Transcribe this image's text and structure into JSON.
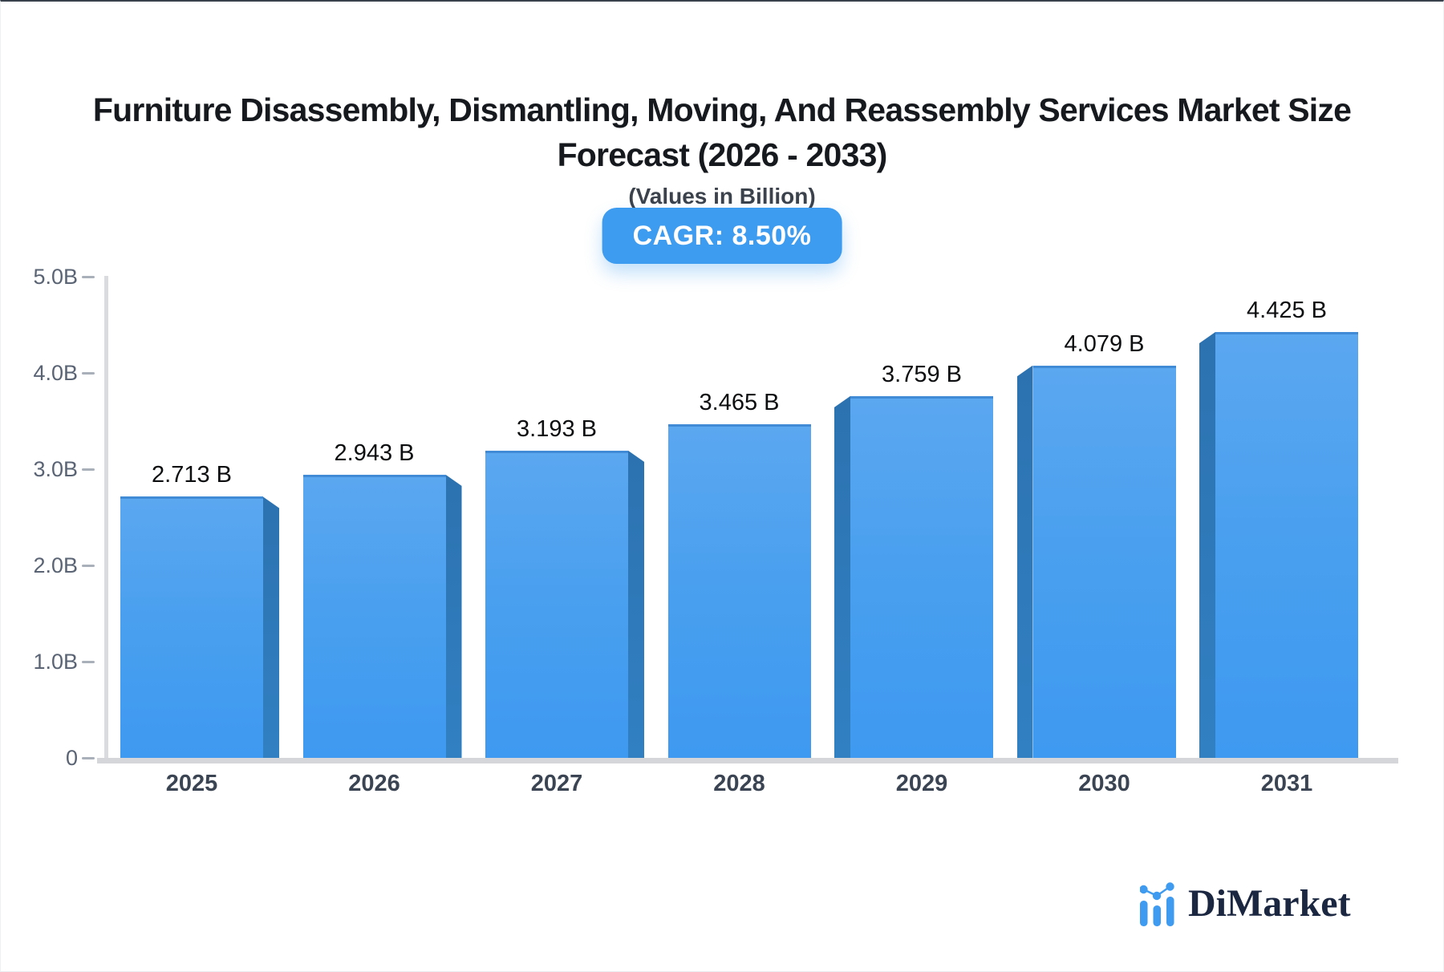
{
  "title": {
    "line1": "Furniture Disassembly, Dismantling, Moving, And Reassembly Services Market Size",
    "line2": "Forecast (2026 - 2033)"
  },
  "subtitle": "(Values in Billion)",
  "badge": {
    "label": "CAGR: 8.50%",
    "color": "#3d9bf0"
  },
  "chart_data": {
    "type": "bar",
    "title": "Furniture Disassembly, Dismantling, Moving, And Reassembly Services Market Size Forecast (2026 - 2033)",
    "subtitle": "(Values in Billion)",
    "categories": [
      "2025",
      "2026",
      "2027",
      "2028",
      "2029",
      "2030",
      "2031"
    ],
    "values": [
      2.713,
      2.943,
      3.193,
      3.465,
      3.759,
      4.079,
      4.425
    ],
    "value_labels": [
      "2.713 B",
      "2.943 B",
      "3.193 B",
      "3.465 B",
      "3.759 B",
      "4.079 B",
      "4.425 B"
    ],
    "unit": "B",
    "xlabel": "",
    "ylabel": "",
    "ylim": [
      0,
      5
    ],
    "ytick_labels": [
      "5.0B",
      "4.0B",
      "3.0B",
      "2.0B",
      "1.0B",
      "0"
    ],
    "ytick_values": [
      5,
      4,
      3,
      2,
      1,
      0
    ],
    "grid": false,
    "legend": false,
    "bar_color_top": "#5ba7f0",
    "bar_color_bottom": "#3e99f0",
    "bar_side_color": "#2e76b8",
    "axis_color": "#d9dbdf"
  },
  "logo": {
    "text": "DiMarket",
    "icon": "mini-bar-chart-icon"
  }
}
